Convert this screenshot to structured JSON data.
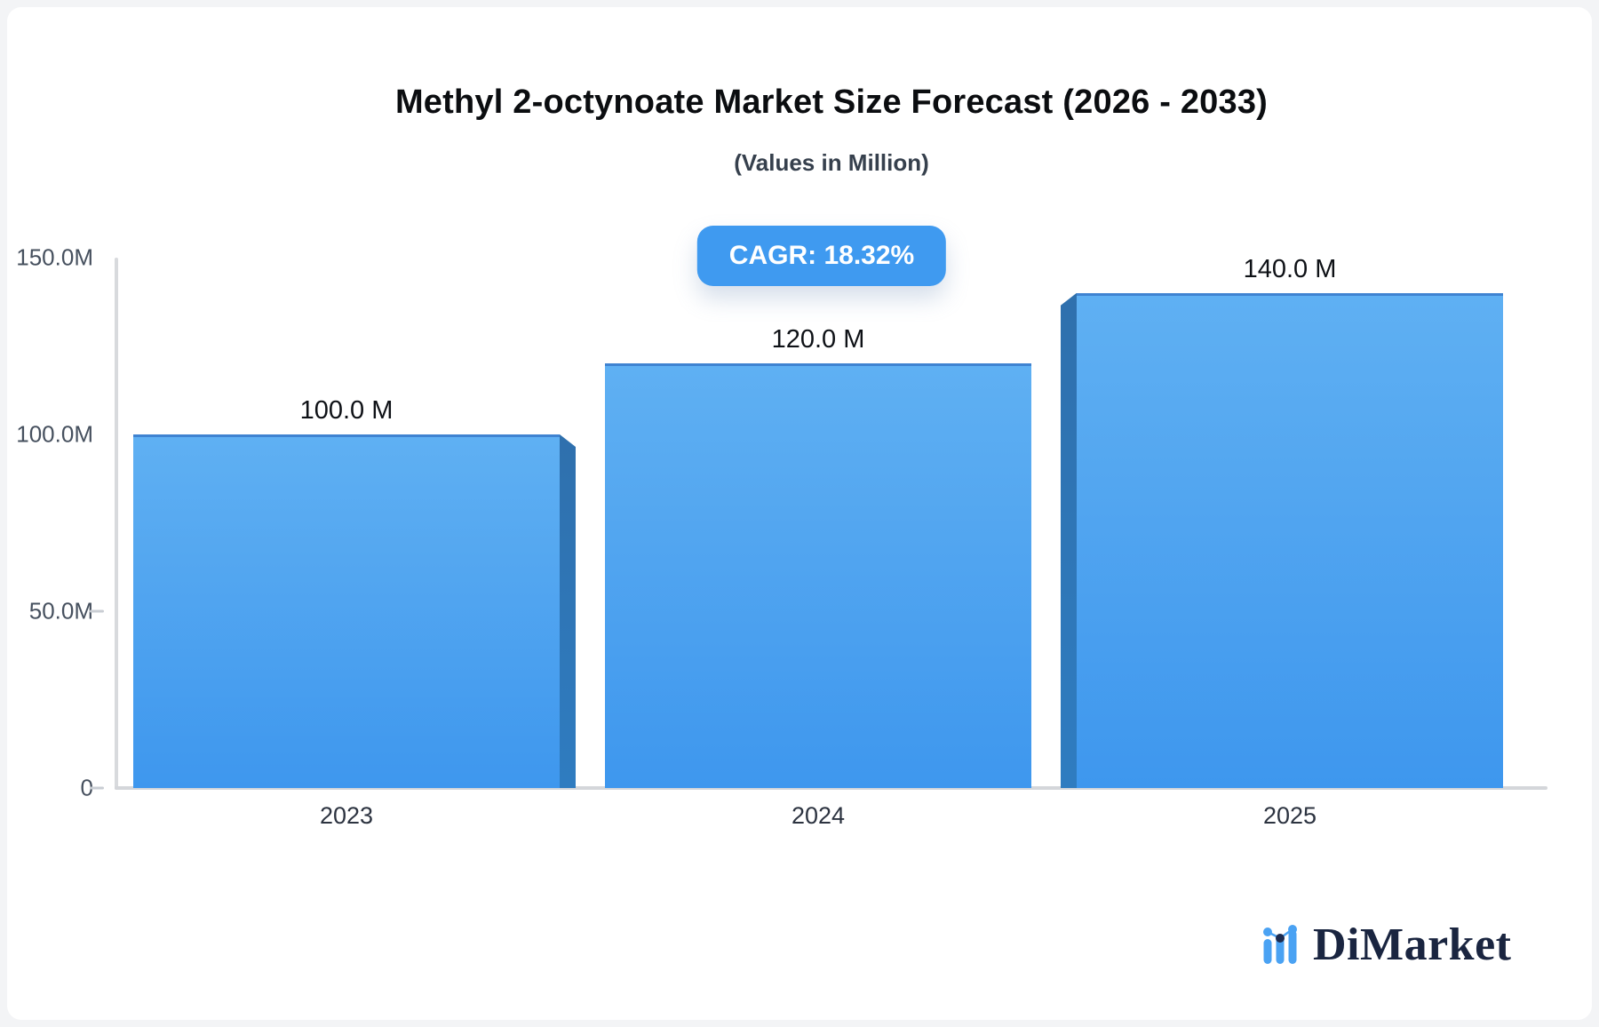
{
  "header": {
    "title": "Methyl 2-octynoate Market Size Forecast (2026 - 2033)",
    "subtitle": "(Values in Million)",
    "cagr_badge": "CAGR: 18.32%"
  },
  "chart_data": {
    "type": "bar",
    "title": "Methyl 2-octynoate Market Size Forecast (2026 - 2033)",
    "subtitle": "(Values in Million)",
    "unit": "Million",
    "categories": [
      "2023",
      "2024",
      "2025"
    ],
    "values": [
      100,
      120,
      140
    ],
    "value_labels": [
      "100.0 M",
      "120.0 M",
      "140.0 M"
    ],
    "ylim": [
      0,
      150
    ],
    "yticks": [
      {
        "label": "150.0M",
        "value": 150,
        "dash": false
      },
      {
        "label": "100.0M",
        "value": 100,
        "dash": false
      },
      {
        "label": "50.0M",
        "value": 50,
        "dash": true
      },
      {
        "label": "0",
        "value": 0,
        "dash": true
      }
    ],
    "grid": false,
    "legend": "none",
    "bar_extrude_sides": [
      "right",
      "none",
      "left"
    ],
    "colors": {
      "bar_top": "#5fb0f3",
      "bar_bottom": "#3e97ee",
      "bar_edge": "#3f83d1",
      "bar_side_3d": "#2f74b5",
      "axis": "#d8dadd",
      "tick_text": "#46505e",
      "value_text": "#0e1116",
      "badge_bg": "#3f9af0"
    }
  },
  "logo": {
    "text": "DiMarket",
    "icon": "bar-chart-logo-icon",
    "navy": "#1d2b4f",
    "blue": "#4aa2f3"
  }
}
